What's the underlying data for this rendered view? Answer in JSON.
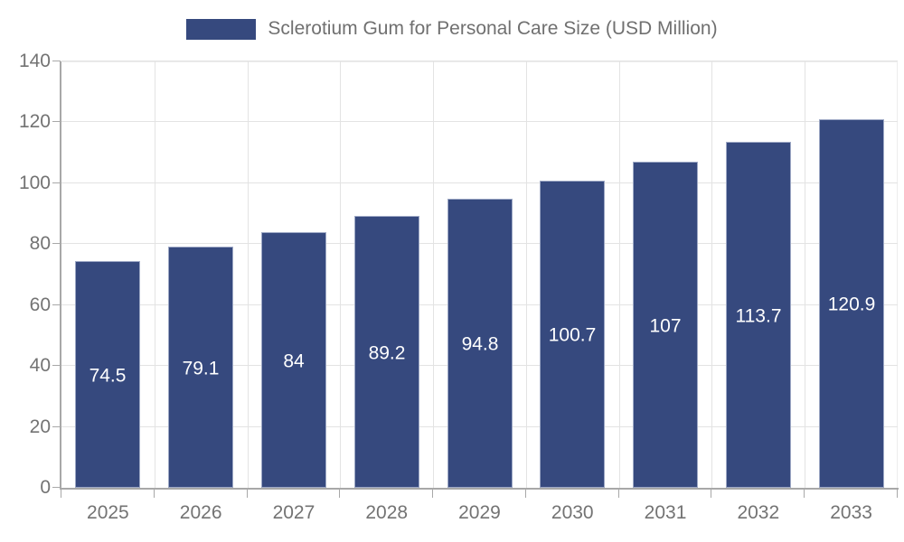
{
  "chart_data": {
    "type": "bar",
    "title": "Sclerotium Gum for Personal Care Size (USD Million)",
    "legend_entries": [
      "Sclerotium Gum for Personal Care Size (USD Million)"
    ],
    "legend_position": "top-center",
    "categories": [
      "2025",
      "2026",
      "2027",
      "2028",
      "2029",
      "2030",
      "2031",
      "2032",
      "2033"
    ],
    "values": [
      74.5,
      79.1,
      84,
      89.2,
      94.8,
      100.7,
      107,
      113.7,
      120.9
    ],
    "value_labels": [
      "74.5",
      "79.1",
      "84",
      "89.2",
      "94.8",
      "100.7",
      "107",
      "113.7",
      "120.9"
    ],
    "value_label_position": "inside-center",
    "xlabel": "",
    "ylabel": "",
    "ylim": [
      0,
      140
    ],
    "yticks": [
      0,
      20,
      40,
      60,
      80,
      100,
      120,
      140
    ],
    "grid": true,
    "colors": {
      "bar": "#36497E",
      "bar_border": "#9DA8C5",
      "value_text": "#FFFFFF",
      "axis_text": "#737373",
      "legend_text": "#707070",
      "axis_line": "#A8A8A8",
      "gridline": "#E3E3E3",
      "plot_border": "#EDEDED",
      "background": "#FFFFFF"
    }
  }
}
